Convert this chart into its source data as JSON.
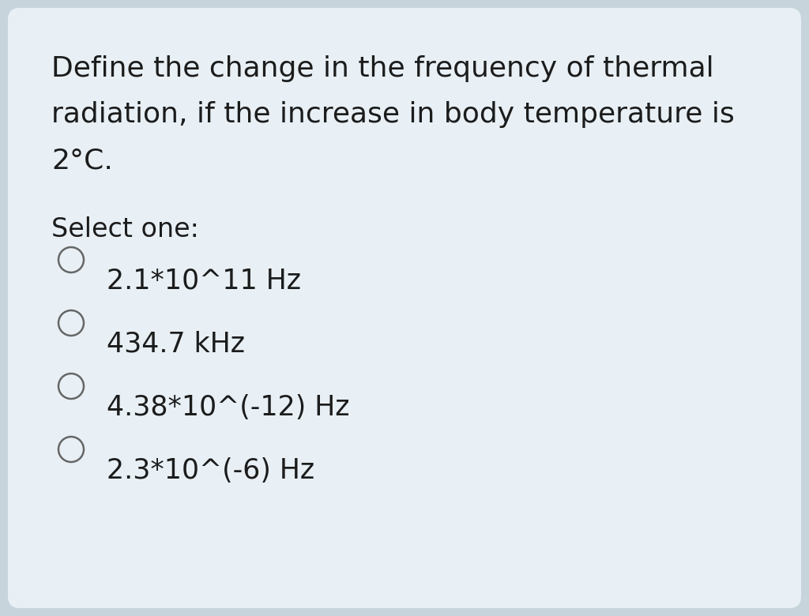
{
  "background_color": "#e8f0f5",
  "outer_bg_color": "#c8d4dc",
  "question_lines": [
    "Define the change in the frequency of thermal",
    "radiation, if the increase in body temperature is",
    "2°C."
  ],
  "select_one_label": "Select one:",
  "options": [
    "2.1*10^11 Hz",
    "434.7 kHz",
    "4.38*10^(-12) Hz",
    "2.3*10^(-6) Hz"
  ],
  "text_color": "#1c1c1c",
  "circle_edge_color": "#666666",
  "circle_fill_color": "#e8f0f5",
  "font_size_question": 26,
  "font_size_select": 24,
  "font_size_options": 25
}
